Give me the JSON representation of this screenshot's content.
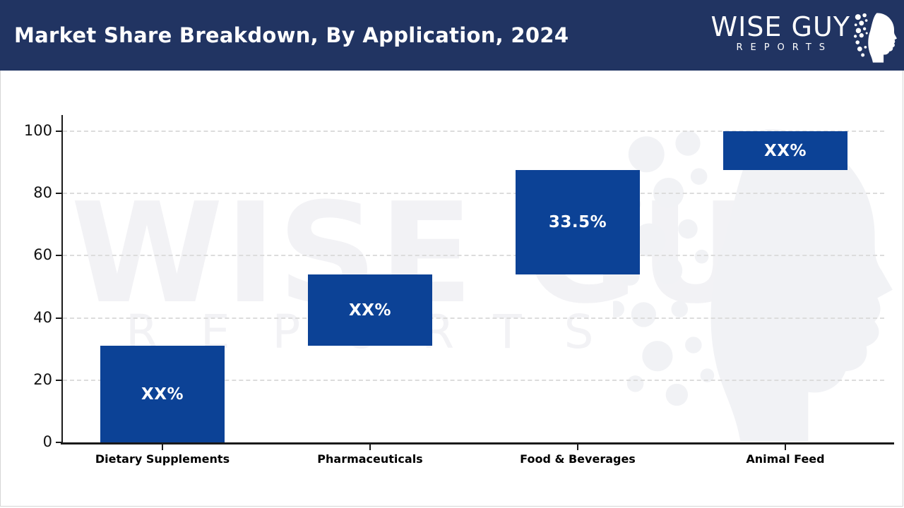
{
  "header": {
    "title": "Market Share Breakdown, By Application, 2024",
    "logo": {
      "line1": "WISE GUY",
      "line2": "REPORTS"
    }
  },
  "watermark": {
    "line1": "WISE GUY",
    "line2": "REPORTS"
  },
  "chart_data": {
    "type": "bar",
    "subtype": "waterfall",
    "title": "Market Share Breakdown, By Application, 2024",
    "categories": [
      "Dietary Supplements",
      "Pharmaceuticals",
      "Food & Beverages",
      "Animal Feed"
    ],
    "bars": [
      {
        "category": "Dietary Supplements",
        "start": 0,
        "end": 31,
        "label": "XX%"
      },
      {
        "category": "Pharmaceuticals",
        "start": 31,
        "end": 54,
        "label": "XX%"
      },
      {
        "category": "Food & Beverages",
        "start": 54,
        "end": 87.5,
        "label": "33.5%",
        "value": 33.5
      },
      {
        "category": "Animal Feed",
        "start": 87.5,
        "end": 100,
        "label": "XX%"
      }
    ],
    "yticks": [
      0,
      20,
      40,
      60,
      80,
      100
    ],
    "ylim": [
      0,
      105
    ],
    "xlabel": "",
    "ylabel": "",
    "grid": "horizontal-dashed",
    "legend": "none",
    "colors": {
      "bar": "#0c4296",
      "bar_label": "#ffffff",
      "header_bg": "#213462",
      "grid": "#dcdcdc",
      "axis": "#1a1a1a"
    }
  }
}
